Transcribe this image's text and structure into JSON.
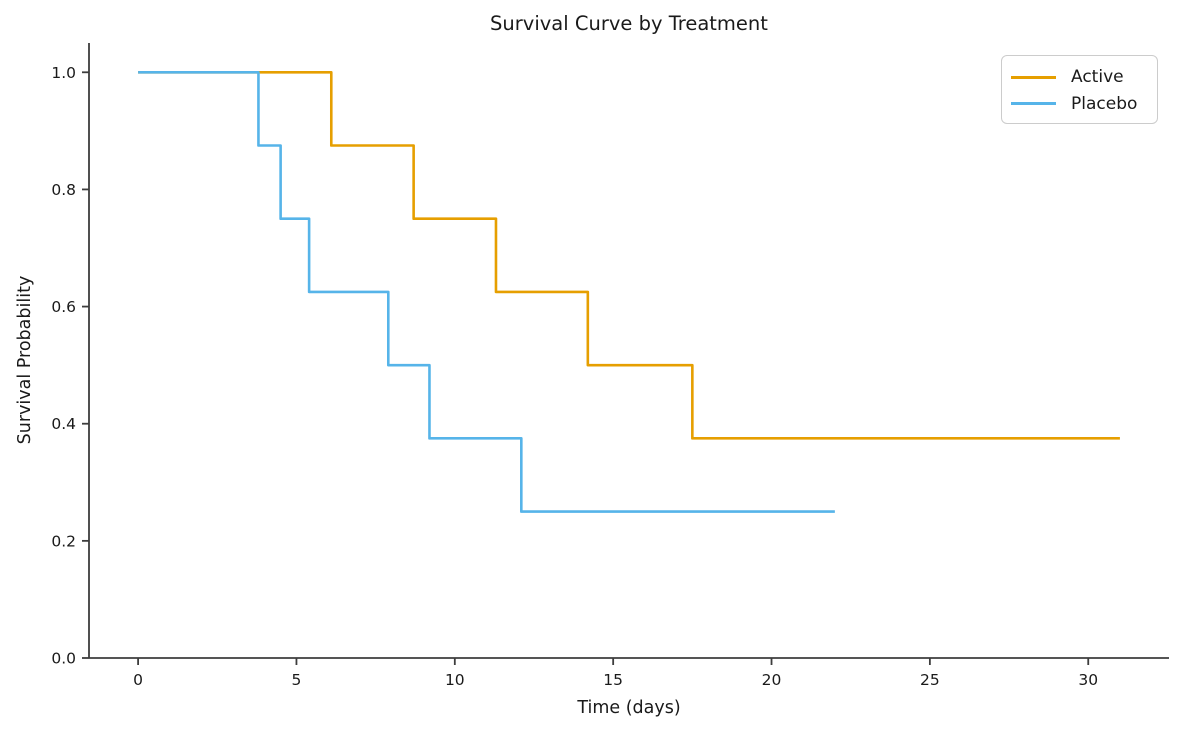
{
  "chart_data": {
    "type": "line",
    "subtype": "step-survival-curve",
    "title": "Survival Curve by Treatment",
    "xlabel": "Time (days)",
    "ylabel": "Survival Probability",
    "xlim": [
      -1.55,
      32.55
    ],
    "ylim": [
      0,
      1.05
    ],
    "xticks": [
      0,
      5,
      10,
      15,
      20,
      25,
      30
    ],
    "xtick_labels": [
      "0",
      "5",
      "10",
      "15",
      "20",
      "25",
      "30"
    ],
    "yticks": [
      0.0,
      0.2,
      0.4,
      0.6,
      0.8,
      1.0
    ],
    "ytick_labels": [
      "0.0",
      "0.2",
      "0.4",
      "0.6",
      "0.8",
      "1.0"
    ],
    "grid": false,
    "legend_position": "top-right",
    "series": [
      {
        "name": "Active",
        "color": "#E69F00",
        "x": [
          0,
          6.1,
          8.7,
          11.3,
          14.2,
          17.5,
          31
        ],
        "y": [
          1.0,
          0.875,
          0.75,
          0.625,
          0.5,
          0.375,
          0.375
        ]
      },
      {
        "name": "Placebo",
        "color": "#56B4E9",
        "x": [
          0,
          3.8,
          4.5,
          5.4,
          7.9,
          9.2,
          12.1,
          22
        ],
        "y": [
          1.0,
          0.875,
          0.75,
          0.625,
          0.5,
          0.375,
          0.25,
          0.25
        ]
      }
    ]
  },
  "colors": {
    "background": "#ffffff",
    "text": "#1a1a1a",
    "axis": "#3d3d3d",
    "legend_border": "#cccccc"
  }
}
